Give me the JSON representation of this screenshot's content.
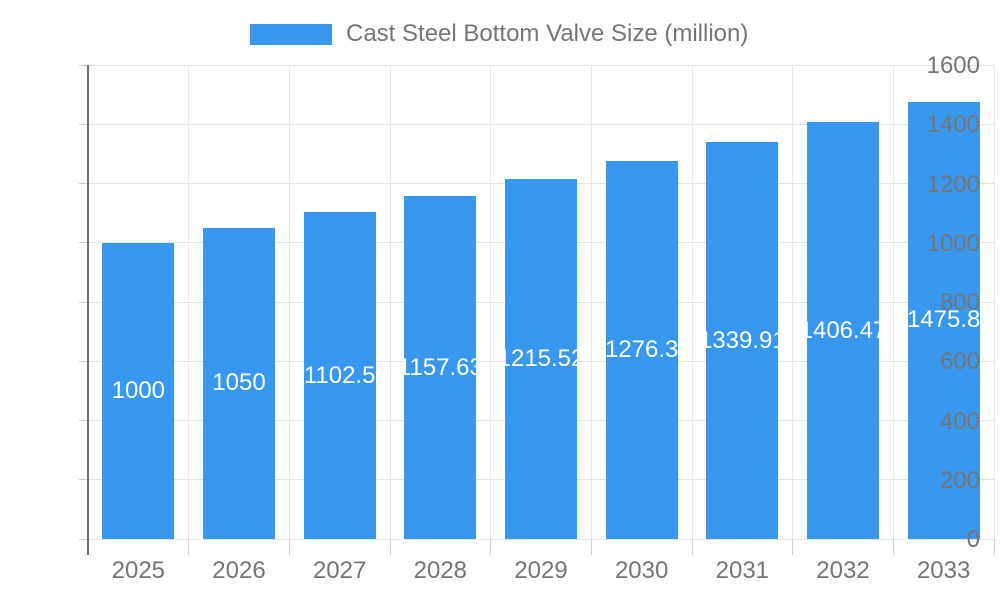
{
  "legend": {
    "label": "Cast Steel Bottom Valve Size (million)"
  },
  "colors": {
    "bar": "#3898F0",
    "text": "#757575",
    "grid": "#E3E3E3",
    "axis": "#6E6E6E",
    "value_label": "#FFFFFF"
  },
  "chart_data": {
    "type": "bar",
    "title": "Cast Steel Bottom Valve Size (million)",
    "categories": [
      "2025",
      "2026",
      "2027",
      "2028",
      "2029",
      "2030",
      "2031",
      "2032",
      "2033"
    ],
    "values": [
      1000,
      1050,
      1102.5,
      1157.63,
      1215.52,
      1276.3,
      1339.91,
      1406.47,
      1475.8
    ],
    "value_labels": [
      "1000",
      "1050",
      "1102.5",
      "1157.63",
      "1215.52",
      "1276.3",
      "1339.91",
      "1406.47",
      "1475.8"
    ],
    "xlabel": "",
    "ylabel": "",
    "ylim": [
      0,
      1600
    ],
    "ytick_step": 200,
    "ytick_labels": [
      "0",
      "200",
      "400",
      "600",
      "800",
      "1000",
      "1200",
      "1400",
      "1600"
    ],
    "grid": true,
    "legend_position": "top",
    "value_label_position": "center-of-bar",
    "bar_color": "#3898F0"
  }
}
